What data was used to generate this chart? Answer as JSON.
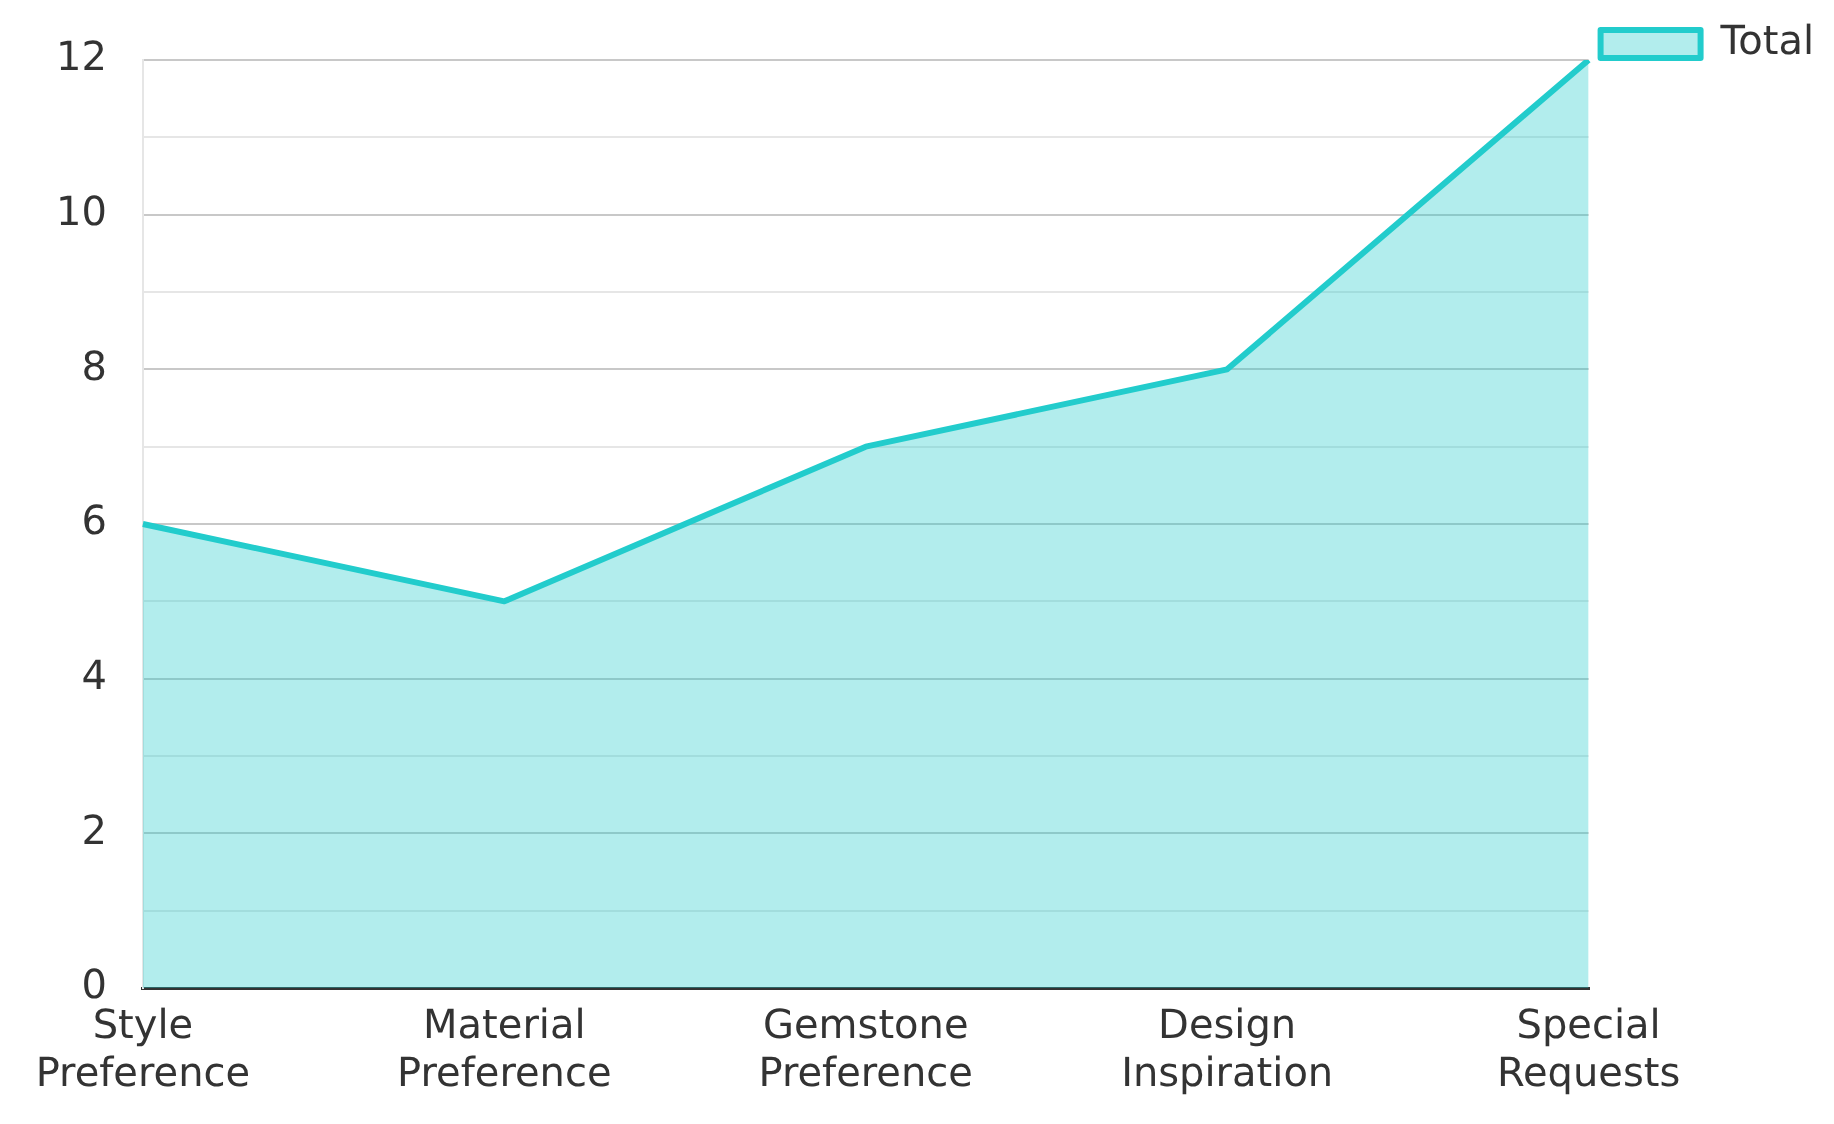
{
  "chart_data": {
    "type": "area",
    "categories": [
      "Style Preference",
      "Material Preference",
      "Gemstone Preference",
      "Design Inspiration",
      "Special Requests"
    ],
    "series": [
      {
        "name": "Total",
        "color": "#22cccc",
        "values": [
          6,
          5,
          7,
          8,
          12
        ]
      }
    ],
    "ylim": [
      0,
      12
    ],
    "yticks": [
      0,
      {
        "value": 1,
        "label": null
      },
      2,
      {
        "value": 3,
        "label": null
      },
      4,
      {
        "value": 5,
        "label": null
      },
      6,
      {
        "value": 7,
        "label": null
      },
      8,
      {
        "value": 9,
        "label": null
      },
      10,
      {
        "value": 11,
        "label": null
      },
      12
    ],
    "grid": "y",
    "legend": "top right",
    "marker": "none",
    "line_style": "solid"
  }
}
